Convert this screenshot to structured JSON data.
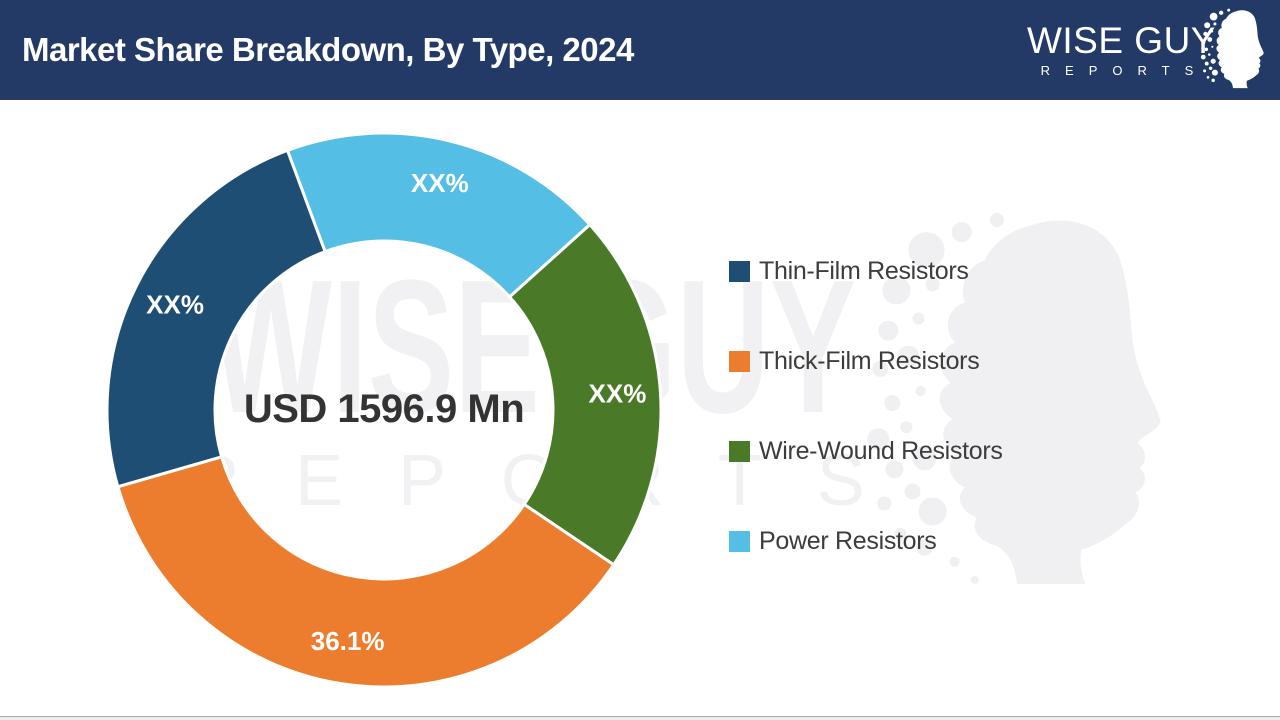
{
  "header": {
    "title": "Market Share Breakdown, By Type, 2024",
    "background_color": "#233A66",
    "logo": {
      "brand": "WISE GUY",
      "brand_sub": "REPORTS"
    }
  },
  "watermark": {
    "brand": "WISE GUY",
    "brand_sub": "REPORTS"
  },
  "chart_data": {
    "type": "pie",
    "subtype": "donut",
    "title": "Market Share Breakdown, By Type, 2024",
    "center_label": "USD 1596.9 Mn",
    "start_angle_deg": -20.4,
    "legend_position": "right",
    "slices": [
      {
        "label": "Thin-Film Resistors",
        "display": "XX%",
        "value_pct": 23.8,
        "labeled_exact": false,
        "color": "#1F4E74"
      },
      {
        "label": "Thick-Film Resistors",
        "display": "36.1%",
        "value_pct": 36.1,
        "labeled_exact": true,
        "color": "#EC7D2F"
      },
      {
        "label": "Wire-Wound Resistors",
        "display": "XX%",
        "value_pct": 21.1,
        "labeled_exact": false,
        "color": "#4A7A28"
      },
      {
        "label": "Power Resistors",
        "display": "XX%",
        "value_pct": 19.0,
        "labeled_exact": false,
        "color": "#55BEE5"
      }
    ],
    "draw_sequence": [
      3,
      2,
      1,
      0
    ]
  }
}
